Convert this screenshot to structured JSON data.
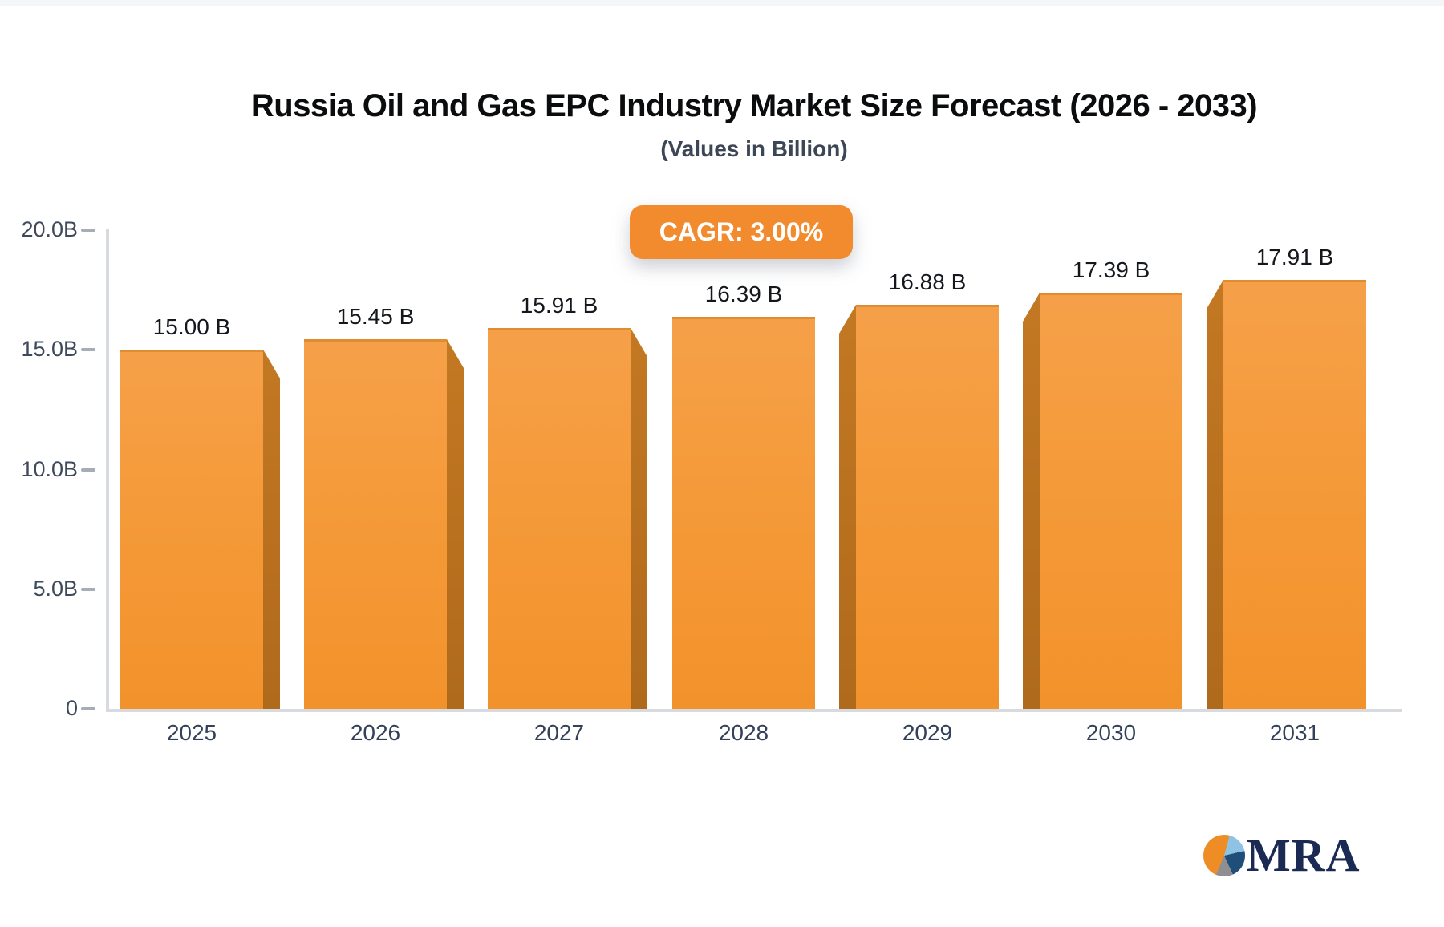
{
  "title": "Russia Oil and Gas EPC Industry Market Size Forecast (2026 - 2033)",
  "subtitle": "(Values in Billion)",
  "badge": {
    "label": "CAGR: 3.00%",
    "bg": "#F28A2E"
  },
  "chart_data": {
    "type": "bar",
    "title": "Russia Oil and Gas EPC Industry Market Size Forecast (2026 - 2033)",
    "subtitle": "(Values in Billion)",
    "categories": [
      "2025",
      "2026",
      "2027",
      "2028",
      "2029",
      "2030",
      "2031"
    ],
    "values": [
      15.0,
      15.45,
      15.91,
      16.39,
      16.88,
      17.39,
      17.91
    ],
    "value_labels": [
      "15.00 B",
      "15.45 B",
      "15.91 B",
      "16.39 B",
      "16.88 B",
      "17.39 B",
      "17.91 B"
    ],
    "xlabel": "",
    "ylabel": "",
    "ylim": [
      0,
      20
    ],
    "yticks": [
      {
        "label": "20.0B",
        "value": 20
      },
      {
        "label": "15.0B",
        "value": 15
      },
      {
        "label": "10.0B",
        "value": 10
      },
      {
        "label": "5.0B",
        "value": 5
      },
      {
        "label": "0",
        "value": 0
      }
    ],
    "grid": false,
    "legend": false,
    "bar_color": "#F5982F",
    "bar_side_color": "#B97120",
    "cagr": "3.00%"
  },
  "logo": {
    "text": "MRA",
    "text_color": "#1b2a52",
    "pie_colors": [
      "#EE8C26",
      "#8FC3E4",
      "#1F4E79",
      "#8F8F93"
    ]
  }
}
